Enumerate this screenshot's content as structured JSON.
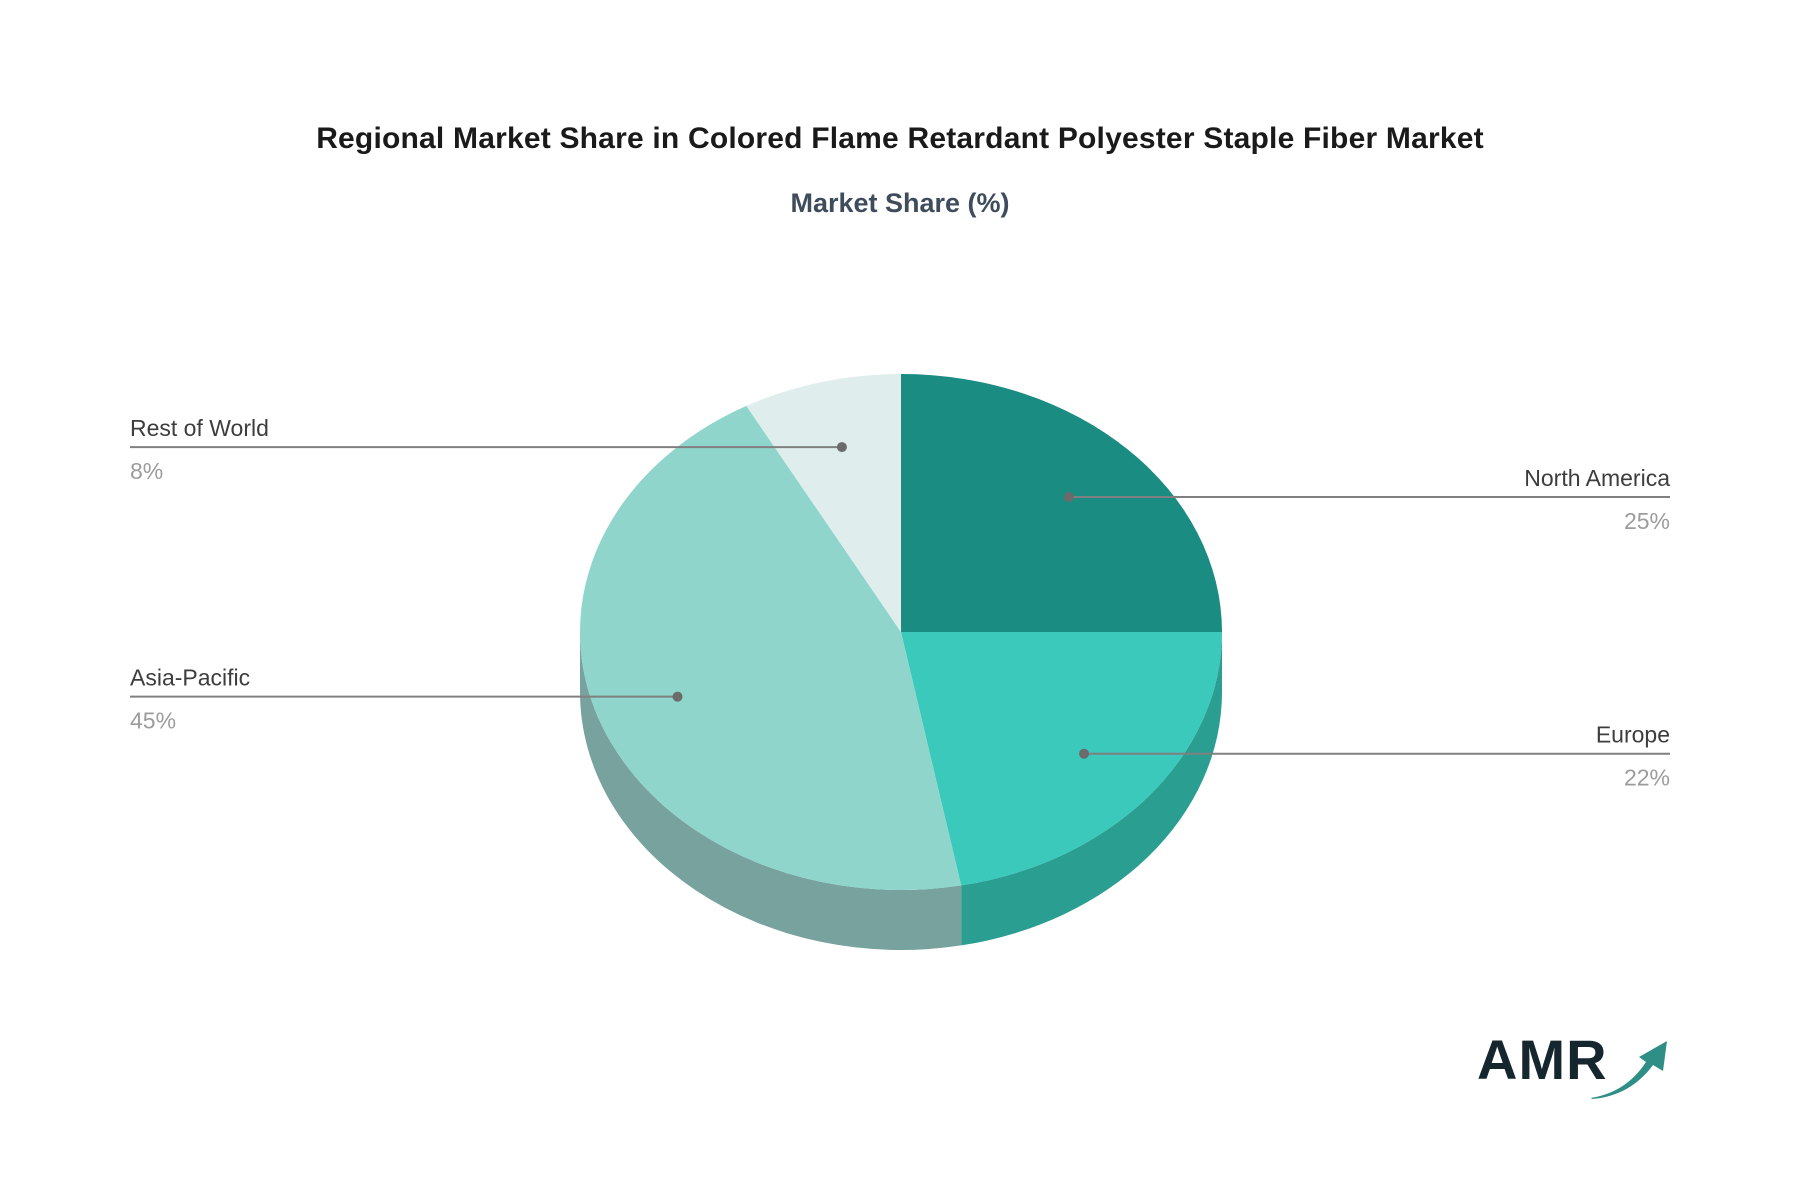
{
  "header": {
    "title": "Regional Market Share in Colored Flame Retardant Polyester Staple Fiber Market",
    "subtitle": "Market Share (%)"
  },
  "logo": {
    "text": "AMR"
  },
  "colors": {
    "background": "#ffffff",
    "title_text": "#1a1a1a",
    "subtitle_text": "#3e4c5c",
    "label_text": "#3d3d3d",
    "percent_text": "#9c9c9c",
    "leader_line": "#808080",
    "leader_dot": "#6b6b6b",
    "logo_text": "#16262e",
    "logo_arrow": "#2f8f86"
  },
  "chart_data": {
    "type": "pie",
    "title": "Regional Market Share in Colored Flame Retardant Polyester Staple Fiber Market",
    "subtitle": "Market Share (%)",
    "unit": "%",
    "effect_3d": true,
    "start_angle_clockwise_from_top_deg": 0,
    "legend_position": "none",
    "segments": [
      {
        "label": "North America",
        "value": 25,
        "display": "25%",
        "color": "#1a8c81",
        "side_color": "#177c72"
      },
      {
        "label": "Europe",
        "value": 22,
        "display": "22%",
        "color": "#3ac9ba",
        "side_color": "#2b9e92"
      },
      {
        "label": "Asia-Pacific",
        "value": 45,
        "display": "45%",
        "color": "#8fd5cc",
        "side_color": "#77a29d"
      },
      {
        "label": "Rest of World",
        "value": 8,
        "display": "8%",
        "color": "#dfeeed",
        "side_color": "#bccecb"
      }
    ]
  }
}
